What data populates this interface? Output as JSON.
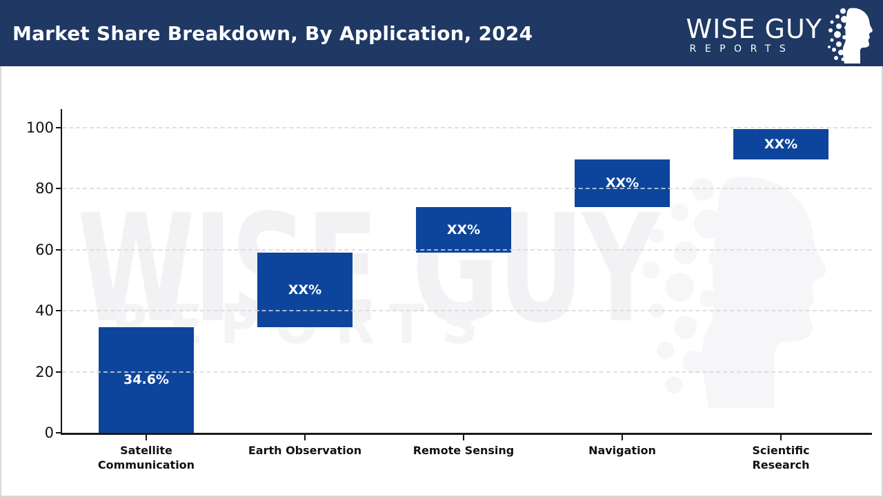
{
  "header": {
    "title": "Market Share Breakdown, By Application, 2024",
    "logo": {
      "line1": "WISE GUY",
      "line2": "REPORTS"
    }
  },
  "watermark": {
    "line1": "WISE GUY",
    "line2": "REPORTS"
  },
  "colors": {
    "header_bg": "#1f3864",
    "bar": "#0d459c",
    "bar_label": "#ffffff",
    "axis": "#111111",
    "grid": "#d7d7da",
    "page_border": "#d9d9d9"
  },
  "chart_data": {
    "type": "bar",
    "subtype": "waterfall",
    "title": "Market Share Breakdown, By Application, 2024",
    "categories": [
      "Satellite\nCommunication",
      "Earth Observation",
      "Remote Sensing",
      "Navigation",
      "Scientific\nResearch"
    ],
    "segments": [
      {
        "category": "Satellite Communication",
        "start": 0,
        "end": 34.6,
        "label": "34.6%"
      },
      {
        "category": "Earth Observation",
        "start": 34.6,
        "end": 59,
        "label": "XX%"
      },
      {
        "category": "Remote Sensing",
        "start": 59,
        "end": 74,
        "label": "XX%"
      },
      {
        "category": "Navigation",
        "start": 74,
        "end": 89.5,
        "label": "XX%"
      },
      {
        "category": "Scientific Research",
        "start": 89.5,
        "end": 99.5,
        "label": "XX%"
      }
    ],
    "yticks": [
      0,
      20,
      40,
      60,
      80,
      100
    ],
    "ylim": [
      0,
      106
    ],
    "xlabel": "",
    "ylabel": "",
    "grid": "horizontal-dashed",
    "legend": "none"
  }
}
